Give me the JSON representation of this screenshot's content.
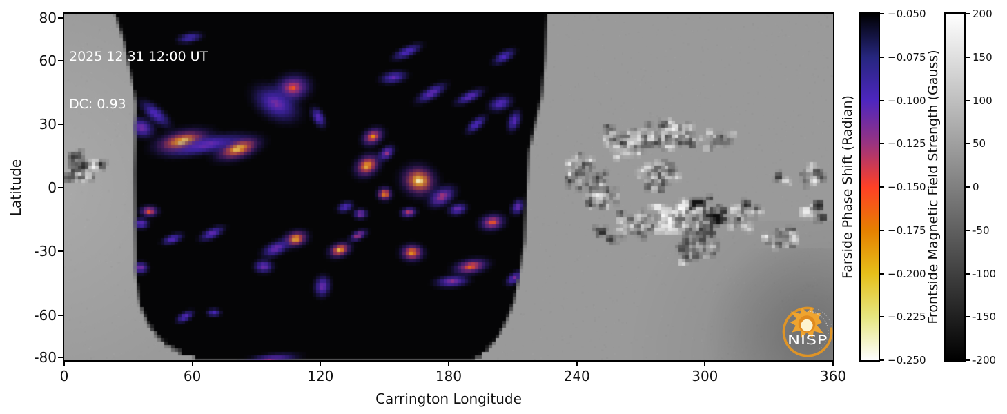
{
  "figure": {
    "watermark": "NISP",
    "background": "#ffffff"
  },
  "chart_data": {
    "type": "heatmap",
    "xlabel": "Carrington Longitude",
    "ylabel": "Latitude",
    "xlim": [
      0,
      360
    ],
    "ylim": [
      -81.3,
      82
    ],
    "x_ticks": [
      0,
      60,
      120,
      180,
      240,
      300,
      360
    ],
    "y_ticks": [
      80,
      60,
      30,
      0,
      -30,
      -60,
      -80
    ],
    "annotation": {
      "date": "2025 12 31 12:00 UT",
      "dc": "DC: 0.93"
    },
    "colors": {
      "quiet_sun": "#9a9a9a",
      "farside_bg": "#050506",
      "annotation_text": "#ffffff",
      "axis_text": "#111111",
      "logo_orange": "#de9427",
      "logo_sun": "#efa42f",
      "logo_core": "#fdf4cf"
    },
    "colorbars": [
      {
        "id": "farside-phase-shift",
        "label": "Farside Phase Shift (Radian)",
        "top_value": -0.05,
        "bottom_value": -0.25,
        "tick_labels": [
          "−0.050",
          "−0.075",
          "−0.100",
          "−0.125",
          "−0.150",
          "−0.175",
          "−0.200",
          "−0.225",
          "−0.250"
        ],
        "cmap": "CMRmap",
        "stops": [
          [
            0,
            "#000000"
          ],
          [
            0.125,
            "#26267f"
          ],
          [
            0.25,
            "#4d26bf"
          ],
          [
            0.375,
            "#993380"
          ],
          [
            0.5,
            "#ff4026"
          ],
          [
            0.625,
            "#e68000"
          ],
          [
            0.75,
            "#e6bf1a"
          ],
          [
            0.875,
            "#e6e680"
          ],
          [
            1,
            "#ffffff"
          ]
        ]
      },
      {
        "id": "frontside-field-strength",
        "label": "Frontside Magnetic Field Strength (Gauss)",
        "top_value": 200,
        "bottom_value": -200,
        "tick_labels": [
          "200",
          "150",
          "100",
          "50",
          "0",
          "-50",
          "-100",
          "-150",
          "-200"
        ],
        "cmap": "gray",
        "stops": [
          [
            0,
            "#ffffff"
          ],
          [
            1,
            "#000000"
          ]
        ]
      }
    ],
    "farside_window": {
      "left_boundary": [
        [
          23.9,
          82
        ],
        [
          28.1,
          68.9
        ],
        [
          32.0,
          49.4
        ],
        [
          33.6,
          39.7
        ],
        [
          33.0,
          7.2
        ],
        [
          33.3,
          -18.9
        ],
        [
          33.6,
          -41.6
        ],
        [
          35.2,
          -54.6
        ],
        [
          39.4,
          -64.4
        ],
        [
          45.9,
          -72.5
        ],
        [
          54.6,
          -78.1
        ],
        [
          63.7,
          -81.0
        ],
        [
          66.9,
          -81.3
        ]
      ],
      "right_boundary": [
        [
          226.2,
          82
        ],
        [
          225.3,
          62.5
        ],
        [
          223.6,
          43.0
        ],
        [
          220.4,
          29.9
        ],
        [
          217.5,
          16.9
        ],
        [
          216.5,
          -2.6
        ],
        [
          215.5,
          -25.4
        ],
        [
          213.0,
          -41.6
        ],
        [
          210.7,
          -53.0
        ],
        [
          207.5,
          -61.8
        ],
        [
          203.3,
          -69.9
        ],
        [
          197.8,
          -76.8
        ],
        [
          192.9,
          -80.4
        ],
        [
          191.3,
          -81.3
        ]
      ]
    },
    "farside_detections": [
      {
        "lon": 55.6,
        "lat": 21.8,
        "rlon": 15.5,
        "rlat": 6.5,
        "ang": -12,
        "peak": 0.92
      },
      {
        "lon": 81.4,
        "lat": 18.5,
        "rlon": 12.9,
        "rlat": 5.9,
        "ang": -18,
        "peak": 0.9
      },
      {
        "lon": 66.9,
        "lat": 20.2,
        "rlon": 19.4,
        "rlat": 4.6,
        "ang": -12,
        "peak": 0.32
      },
      {
        "lon": 36.2,
        "lat": 28.3,
        "rlon": 7.1,
        "rlat": 5.2,
        "ang": 20,
        "peak": 0.35
      },
      {
        "lon": 42.7,
        "lat": 34.8,
        "rlon": 9.7,
        "rlat": 3.9,
        "ang": 40,
        "peak": 0.28
      },
      {
        "lon": 39.8,
        "lat": -11.1,
        "rlon": 5.2,
        "rlat": 3.3,
        "ang": 0,
        "peak": 0.62
      },
      {
        "lon": 35.9,
        "lat": -16.9,
        "rlon": 4.5,
        "rlat": 3.0,
        "ang": 0,
        "peak": 0.33
      },
      {
        "lon": 35.6,
        "lat": -37.7,
        "rlon": 4.5,
        "rlat": 3.3,
        "ang": 0,
        "peak": 0.38
      },
      {
        "lon": 50.7,
        "lat": -24.1,
        "rlon": 5.8,
        "rlat": 2.6,
        "ang": -20,
        "peak": 0.3
      },
      {
        "lon": 69.2,
        "lat": -21.5,
        "rlon": 7.1,
        "rlat": 2.9,
        "ang": -25,
        "peak": 0.32
      },
      {
        "lon": 56.6,
        "lat": -60.8,
        "rlon": 5.2,
        "rlat": 2.6,
        "ang": -30,
        "peak": 0.3
      },
      {
        "lon": 70.1,
        "lat": -58.9,
        "rlon": 3.9,
        "rlat": 2.3,
        "ang": 0,
        "peak": 0.25
      },
      {
        "lon": 107.0,
        "lat": 47.1,
        "rlon": 9.7,
        "rlat": 7.2,
        "ang": -10,
        "peak": 0.55
      },
      {
        "lon": 99.2,
        "lat": 39.7,
        "rlon": 12.9,
        "rlat": 8.1,
        "ang": 30,
        "peak": 0.33
      },
      {
        "lon": 119.0,
        "lat": 33.2,
        "rlon": 5.8,
        "rlat": 3.3,
        "ang": 60,
        "peak": 0.3
      },
      {
        "lon": 160.6,
        "lat": 64.1,
        "rlon": 8.1,
        "rlat": 2.9,
        "ang": -25,
        "peak": 0.28
      },
      {
        "lon": 154.2,
        "lat": 52.0,
        "rlon": 7.1,
        "rlat": 3.3,
        "ang": -10,
        "peak": 0.3
      },
      {
        "lon": 205.9,
        "lat": 61.8,
        "rlon": 6.5,
        "rlat": 2.9,
        "ang": -30,
        "peak": 0.25
      },
      {
        "lon": 58.8,
        "lat": 70.6,
        "rlon": 6.5,
        "rlat": 2.6,
        "ang": -10,
        "peak": 0.22
      },
      {
        "lon": 171.9,
        "lat": 44.6,
        "rlon": 9.0,
        "rlat": 3.3,
        "ang": -30,
        "peak": 0.33
      },
      {
        "lon": 189.7,
        "lat": 42.9,
        "rlon": 8.1,
        "rlat": 2.9,
        "ang": -25,
        "peak": 0.32
      },
      {
        "lon": 204.3,
        "lat": 39.7,
        "rlon": 6.5,
        "rlat": 3.9,
        "ang": -20,
        "peak": 0.3
      },
      {
        "lon": 210.7,
        "lat": 31.5,
        "rlon": 5.8,
        "rlat": 3.3,
        "ang": -70,
        "peak": 0.3
      },
      {
        "lon": 192.9,
        "lat": 29.9,
        "rlon": 6.5,
        "rlat": 2.9,
        "ang": -40,
        "peak": 0.28
      },
      {
        "lon": 144.5,
        "lat": 24.1,
        "rlon": 6.5,
        "rlat": 4.6,
        "ang": -30,
        "peak": 0.68
      },
      {
        "lon": 141.9,
        "lat": 10.4,
        "rlon": 7.8,
        "rlat": 5.9,
        "ang": -35,
        "peak": 0.85
      },
      {
        "lon": 150.9,
        "lat": 16.3,
        "rlon": 5.2,
        "rlat": 3.3,
        "ang": -40,
        "peak": 0.4
      },
      {
        "lon": 166.1,
        "lat": 3.3,
        "rlon": 9.7,
        "rlat": 8.5,
        "ang": 15,
        "peak": 0.97
      },
      {
        "lon": 176.8,
        "lat": -4.2,
        "rlon": 8.1,
        "rlat": 4.9,
        "ang": -30,
        "peak": 0.45
      },
      {
        "lon": 150.0,
        "lat": -2.9,
        "rlon": 4.2,
        "rlat": 3.9,
        "ang": 0,
        "peak": 0.82
      },
      {
        "lon": 131.6,
        "lat": -9.1,
        "rlon": 4.5,
        "rlat": 2.9,
        "ang": -20,
        "peak": 0.3
      },
      {
        "lon": 138.7,
        "lat": -12.4,
        "rlon": 3.9,
        "rlat": 2.9,
        "ang": 0,
        "peak": 0.45
      },
      {
        "lon": 161.3,
        "lat": -11.7,
        "rlon": 4.5,
        "rlat": 2.9,
        "ang": -10,
        "peak": 0.5
      },
      {
        "lon": 184.2,
        "lat": -10.1,
        "rlon": 5.2,
        "rlat": 3.3,
        "ang": -15,
        "peak": 0.35
      },
      {
        "lon": 200.4,
        "lat": -16.3,
        "rlon": 7.1,
        "rlat": 4.6,
        "ang": -10,
        "peak": 0.6
      },
      {
        "lon": 212.3,
        "lat": -9.1,
        "rlon": 4.5,
        "rlat": 3.3,
        "ang": -60,
        "peak": 0.35
      },
      {
        "lon": 108.3,
        "lat": -24.1,
        "rlon": 7.1,
        "rlat": 4.6,
        "ang": -15,
        "peak": 0.88
      },
      {
        "lon": 99.2,
        "lat": -28.6,
        "rlon": 8.1,
        "rlat": 3.9,
        "ang": -25,
        "peak": 0.35
      },
      {
        "lon": 129.0,
        "lat": -29.3,
        "rlon": 6.5,
        "rlat": 4.2,
        "ang": -20,
        "peak": 0.85
      },
      {
        "lon": 162.9,
        "lat": -30.6,
        "rlon": 6.5,
        "rlat": 4.9,
        "ang": 0,
        "peak": 0.78
      },
      {
        "lon": 137.7,
        "lat": -22.4,
        "rlon": 5.2,
        "rlat": 2.6,
        "ang": -25,
        "peak": 0.5
      },
      {
        "lon": 190.4,
        "lat": -37.1,
        "rlon": 9.7,
        "rlat": 4.2,
        "ang": -10,
        "peak": 0.65
      },
      {
        "lon": 93.4,
        "lat": -37.1,
        "rlon": 5.2,
        "rlat": 3.6,
        "ang": 0,
        "peak": 0.35
      },
      {
        "lon": 120.9,
        "lat": -46.5,
        "rlon": 4.5,
        "rlat": 5.9,
        "ang": 10,
        "peak": 0.35
      },
      {
        "lon": 181.6,
        "lat": -44.2,
        "rlon": 9.0,
        "rlat": 3.3,
        "ang": -5,
        "peak": 0.38
      },
      {
        "lon": 210.7,
        "lat": -42.6,
        "rlon": 5.2,
        "rlat": 2.9,
        "ang": -40,
        "peak": 0.35
      },
      {
        "lon": 96.0,
        "lat": -81.5,
        "rlon": 14.5,
        "rlat": 3.3,
        "ang": -8,
        "peak": 0.42
      }
    ],
    "frontside_active_regions": {
      "patches": [
        {
          "lon": 12.9,
          "lat": 11.4,
          "w": 5.8,
          "h": 3.3,
          "c": "#f8f8f8"
        },
        {
          "lon": 4.9,
          "lat": 14.3,
          "w": 5.2,
          "h": 3.9,
          "c": "#474747"
        },
        {
          "lon": 5.8,
          "lat": 7.2,
          "w": 4.5,
          "h": 5.2,
          "c": "#3f3f3f"
        },
        {
          "lon": 1.9,
          "lat": 5.2,
          "w": 3.2,
          "h": 2.6,
          "c": "#565656"
        },
        {
          "lon": 17.1,
          "lat": 11.1,
          "w": 2.9,
          "h": 2.6,
          "c": "#2f2f2f"
        },
        {
          "lon": 8.4,
          "lat": 6.5,
          "w": 4.2,
          "h": 3.6,
          "c": "#c6c6c6"
        },
        {
          "lon": 285.4,
          "lat": 27.6,
          "w": 6.5,
          "h": 3.9,
          "c": "#f4f4f4"
        },
        {
          "lon": 283.5,
          "lat": 23.4,
          "w": 7.8,
          "h": 4.6,
          "c": "#1a1a1a"
        },
        {
          "lon": 291.5,
          "lat": 23.1,
          "w": 7.1,
          "h": 2.6,
          "c": "#eaeaea"
        },
        {
          "lon": 277.6,
          "lat": 21.8,
          "w": 3.9,
          "h": 2.6,
          "c": "#3c3c3c"
        },
        {
          "lon": 281.5,
          "lat": 30.2,
          "w": 3.2,
          "h": 2.3,
          "c": "#4a4a4a"
        },
        {
          "lon": 282.8,
          "lat": -15.0,
          "w": 8.4,
          "h": 6.5,
          "c": "#f6f6f6"
        },
        {
          "lon": 289.9,
          "lat": -10.1,
          "w": 5.8,
          "h": 4.6,
          "c": "#ffffff"
        },
        {
          "lon": 285.1,
          "lat": -19.8,
          "w": 5.2,
          "h": 3.3,
          "c": "#dedede"
        },
        {
          "lon": 277.9,
          "lat": -9.1,
          "w": 3.9,
          "h": 3.3,
          "c": "#e8e8e8"
        },
        {
          "lon": 296.7,
          "lat": -7.8,
          "w": 6.5,
          "h": 4.6,
          "c": "#131313"
        },
        {
          "lon": 304.5,
          "lat": -14.6,
          "w": 7.1,
          "h": 5.2,
          "c": "#0e0e0e"
        },
        {
          "lon": 300.6,
          "lat": -19.5,
          "w": 5.8,
          "h": 3.9,
          "c": "#222222"
        },
        {
          "lon": 308.7,
          "lat": -11.1,
          "w": 3.2,
          "h": 2.9,
          "c": "#333333"
        },
        {
          "lon": 347.4,
          "lat": -11.1,
          "w": 4.8,
          "h": 3.6,
          "c": "#ececec"
        },
        {
          "lon": 353.2,
          "lat": -8.1,
          "w": 4.2,
          "h": 3.6,
          "c": "#2a2a2a"
        },
        {
          "lon": 355.2,
          "lat": -14.0,
          "w": 3.6,
          "h": 2.9,
          "c": "#383838"
        },
        {
          "lon": 334.5,
          "lat": 5.2,
          "w": 3.2,
          "h": 2.6,
          "c": "#3c3c3c"
        },
        {
          "lon": 338.0,
          "lat": 3.3,
          "w": 3.2,
          "h": 2.3,
          "c": "#d8d8d8"
        },
        {
          "lon": 251.8,
          "lat": -20.8,
          "w": 3.9,
          "h": 2.9,
          "c": "#2e2e2e"
        },
        {
          "lon": 255.7,
          "lat": -24.1,
          "w": 3.2,
          "h": 2.6,
          "c": "#3a3a3a"
        }
      ],
      "speckle_clusters": [
        {
          "lon": 261,
          "lat": 23,
          "sl": 18,
          "sb": 12,
          "n": 70,
          "lf": 0.5
        },
        {
          "lon": 277,
          "lat": 7,
          "sl": 14,
          "sb": 12,
          "n": 50,
          "lf": 0.5
        },
        {
          "lon": 250,
          "lat": -2,
          "sl": 12,
          "sb": 14,
          "n": 40,
          "lf": 0.45
        },
        {
          "lon": 268,
          "lat": -16,
          "sl": 16,
          "sb": 10,
          "n": 55,
          "lf": 0.5
        },
        {
          "lon": 295,
          "lat": -28,
          "sl": 14,
          "sb": 8,
          "n": 45,
          "lf": 0.35
        },
        {
          "lon": 317,
          "lat": -12,
          "sl": 12,
          "sb": 10,
          "n": 30,
          "lf": 0.5
        },
        {
          "lon": 283,
          "lat": 27,
          "sl": 16,
          "sb": 8,
          "n": 40,
          "lf": 0.55
        },
        {
          "lon": 335,
          "lat": -22,
          "sl": 12,
          "sb": 8,
          "n": 25,
          "lf": 0.5
        },
        {
          "lon": 240,
          "lat": 8,
          "sl": 10,
          "sb": 14,
          "n": 30,
          "lf": 0.45
        },
        {
          "lon": 8,
          "lat": 10,
          "sl": 9,
          "sb": 9,
          "n": 40,
          "lf": 0.45
        },
        {
          "lon": 292,
          "lat": -14,
          "sl": 20,
          "sb": 10,
          "n": 60,
          "lf": 0.5
        },
        {
          "lon": 285,
          "lat": 24,
          "sl": 16,
          "sb": 8,
          "n": 50,
          "lf": 0.5
        },
        {
          "lon": 305,
          "lat": 25,
          "sl": 12,
          "sb": 8,
          "n": 25,
          "lf": 0.5
        },
        {
          "lon": 350,
          "lat": 8,
          "sl": 8,
          "sb": 10,
          "n": 20,
          "lf": 0.5
        }
      ]
    }
  }
}
